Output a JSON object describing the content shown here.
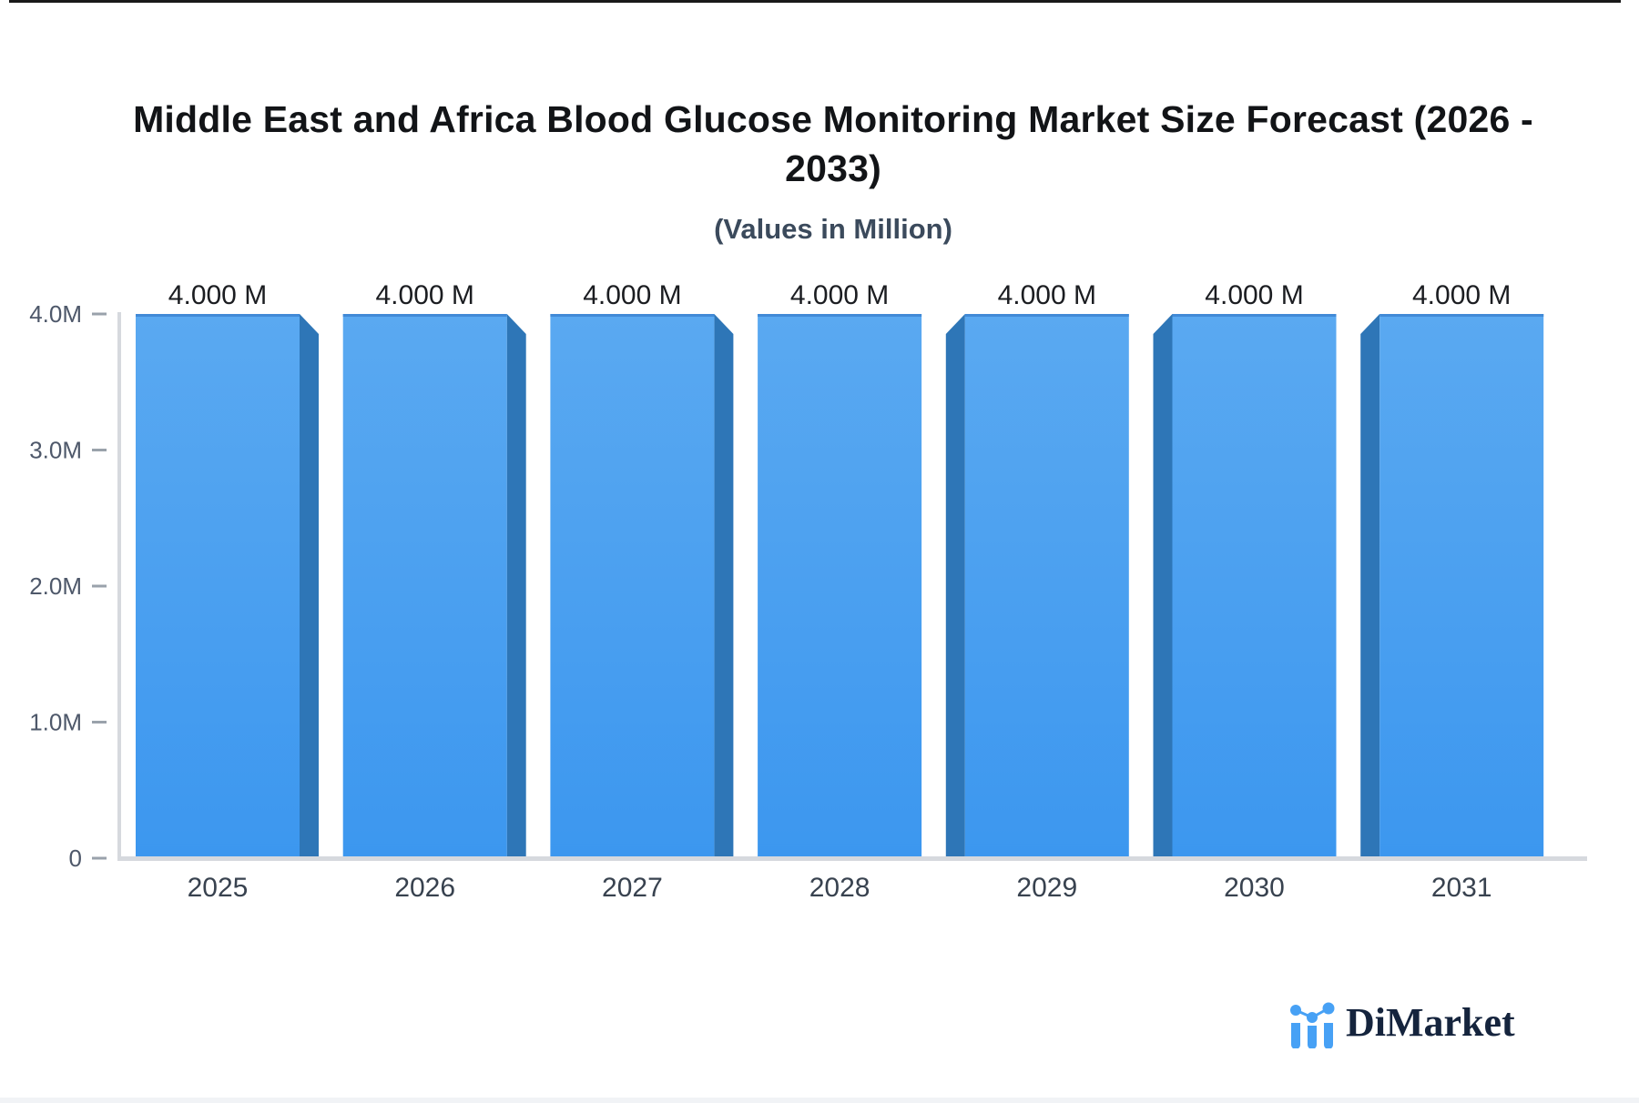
{
  "header": {
    "title_line1": "Middle East and Africa Blood Glucose Monitoring Market Size Forecast (2026 -",
    "title_line2": "2033)",
    "subtitle": "(Values in Million)"
  },
  "chart_data": {
    "type": "bar",
    "title": "Middle East and Africa Blood Glucose Monitoring Market Size Forecast (2026 - 2033)",
    "subtitle": "(Values in Million)",
    "unit": "Million",
    "categories": [
      "2025",
      "2026",
      "2027",
      "2028",
      "2029",
      "2030",
      "2031"
    ],
    "values": [
      4.0,
      4.0,
      4.0,
      4.0,
      4.0,
      4.0,
      4.0
    ],
    "value_labels": [
      "4.000 M",
      "4.000 M",
      "4.000 M",
      "4.000 M",
      "4.000 M",
      "4.000 M",
      "4.000 M"
    ],
    "ylim": [
      0,
      4.0
    ],
    "yticks": [
      {
        "value": 4.0,
        "label": "4.0M"
      },
      {
        "value": 3.0,
        "label": "3.0M"
      },
      {
        "value": 2.0,
        "label": "2.0M"
      },
      {
        "value": 1.0,
        "label": "1.0M"
      },
      {
        "value": 0.0,
        "label": "0"
      }
    ],
    "grid": false,
    "legend": false,
    "style_3d": true,
    "colors": {
      "bar_face_top": "#5aa9f1",
      "bar_face_bottom": "#3c97ef",
      "bar_top_edge": "#418ad7",
      "bar_side": "#2e76b7",
      "axis_line": "#d6d9de",
      "tick_dash": "#9aa2ab",
      "ytick_label": "#4e586a",
      "xtick_label": "#38424f",
      "value_label": "#1b1d21"
    }
  },
  "logo": {
    "brand": "DiMarket",
    "icon": "dimarket-bars-icon",
    "icon_color": "#47a1f5",
    "text_color": "#15243d"
  }
}
